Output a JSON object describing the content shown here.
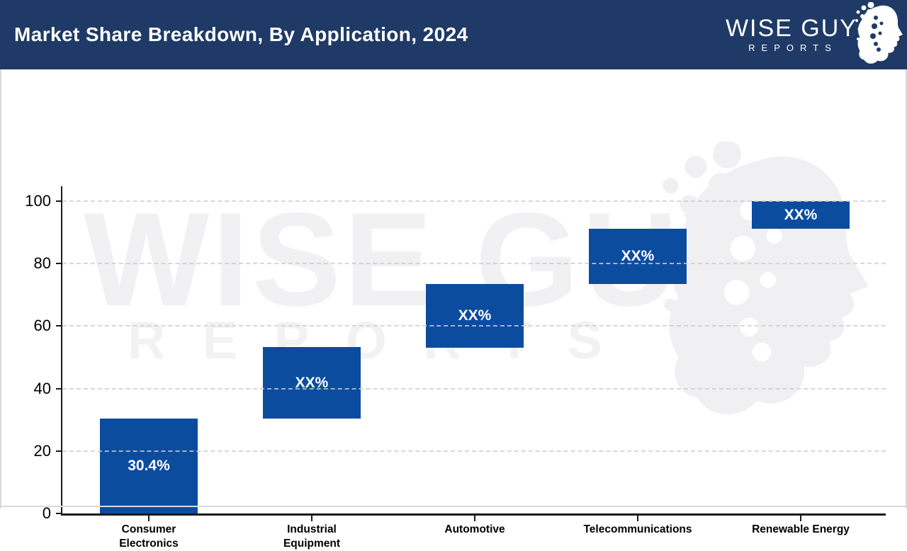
{
  "header": {
    "title": "Market Share Breakdown, By Application, 2024",
    "logo": {
      "wordmark": "WISE GUY",
      "sub": "REPORTS"
    }
  },
  "watermark": {
    "wordmark": "WISE GUY",
    "sub": "REPORTS"
  },
  "chart_data": {
    "type": "bar",
    "subtype": "waterfall",
    "title": "Market Share Breakdown, By Application, 2024",
    "categories": [
      "Consumer\nElectronics",
      "Industrial\nEquipment",
      "Automotive",
      "Telecommunications",
      "Renewable Energy"
    ],
    "segments": [
      {
        "category": "Consumer Electronics",
        "start": 0,
        "end": 30.4,
        "value": 30.4,
        "label": "30.4%"
      },
      {
        "category": "Industrial Equipment",
        "start": 30.4,
        "end": 53.2,
        "value": 22.8,
        "label": "XX%"
      },
      {
        "category": "Automotive",
        "start": 53.2,
        "end": 73.5,
        "value": 20.3,
        "label": "XX%"
      },
      {
        "category": "Telecommunications",
        "start": 73.5,
        "end": 91.2,
        "value": 17.7,
        "label": "XX%"
      },
      {
        "category": "Renewable Energy",
        "start": 91.2,
        "end": 100,
        "value": 8.8,
        "label": "XX%"
      }
    ],
    "yticks": [
      0,
      20,
      40,
      60,
      80,
      100
    ],
    "ylim": [
      0,
      105
    ],
    "xlabel": "",
    "ylabel": "",
    "legend": null,
    "grid": {
      "axis": "y",
      "style": "dashed",
      "above_bars": true
    },
    "bar_color": "#0c4c9f",
    "bar_label_color": "#ffffff",
    "header_bg_color": "#1f3a66",
    "watermark_color": "#f1f1f4"
  }
}
